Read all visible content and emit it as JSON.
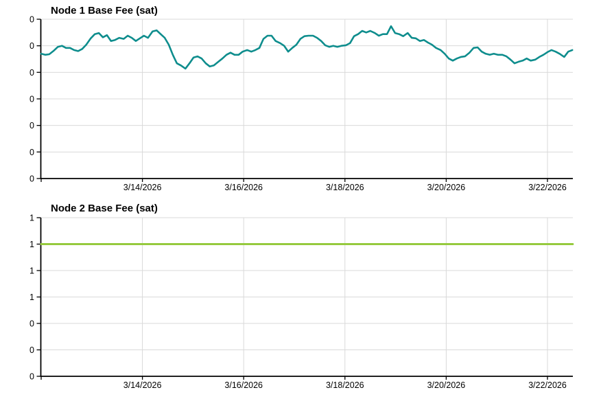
{
  "page": {
    "background_color": "#ffffff",
    "grid_color": "#d9d9d9",
    "axis_color": "#000000",
    "tick_label_color": "#000000"
  },
  "chart_data": [
    {
      "type": "line",
      "title": "Node 1 Base Fee (sat)",
      "x_epoch_note": "x in days since 3/12/2026 at left edge of plot",
      "x_range_days": [
        0,
        10.5
      ],
      "x_tick_days": [
        2,
        4,
        6,
        8,
        10
      ],
      "x_tick_labels": [
        "3/14/2026",
        "3/16/2026",
        "3/18/2026",
        "3/20/2026",
        "3/22/2026"
      ],
      "ylim": [
        0,
        0.3
      ],
      "y_tick_values": [
        0,
        0.05,
        0.1,
        0.15,
        0.2,
        0.25,
        0.3
      ],
      "y_tick_labels": [
        "0",
        "0",
        "0",
        "0",
        "0",
        "0",
        "0"
      ],
      "grid": true,
      "legend": "none",
      "series": [
        {
          "name": "Node 1 base fee",
          "color": "#0e8d8d",
          "stroke_width": 2.6,
          "points": [
            [
              0,
              0.235
            ],
            [
              0.08,
              0.233
            ],
            [
              0.16,
              0.234
            ],
            [
              0.24,
              0.24
            ],
            [
              0.33,
              0.248
            ],
            [
              0.41,
              0.25
            ],
            [
              0.49,
              0.246
            ],
            [
              0.57,
              0.246
            ],
            [
              0.65,
              0.242
            ],
            [
              0.73,
              0.24
            ],
            [
              0.81,
              0.244
            ],
            [
              0.89,
              0.252
            ],
            [
              0.98,
              0.264
            ],
            [
              1.06,
              0.272
            ],
            [
              1.14,
              0.274
            ],
            [
              1.22,
              0.266
            ],
            [
              1.3,
              0.27
            ],
            [
              1.38,
              0.259
            ],
            [
              1.46,
              0.261
            ],
            [
              1.54,
              0.265
            ],
            [
              1.63,
              0.263
            ],
            [
              1.71,
              0.269
            ],
            [
              1.79,
              0.265
            ],
            [
              1.87,
              0.259
            ],
            [
              1.95,
              0.264
            ],
            [
              2.03,
              0.269
            ],
            [
              2.11,
              0.265
            ],
            [
              2.2,
              0.277
            ],
            [
              2.28,
              0.279
            ],
            [
              2.36,
              0.272
            ],
            [
              2.44,
              0.265
            ],
            [
              2.52,
              0.252
            ],
            [
              2.6,
              0.233
            ],
            [
              2.68,
              0.217
            ],
            [
              2.76,
              0.213
            ],
            [
              2.85,
              0.207
            ],
            [
              2.93,
              0.217
            ],
            [
              3.01,
              0.228
            ],
            [
              3.09,
              0.23
            ],
            [
              3.17,
              0.226
            ],
            [
              3.25,
              0.217
            ],
            [
              3.33,
              0.211
            ],
            [
              3.41,
              0.213
            ],
            [
              3.5,
              0.22
            ],
            [
              3.58,
              0.226
            ],
            [
              3.66,
              0.233
            ],
            [
              3.74,
              0.237
            ],
            [
              3.82,
              0.233
            ],
            [
              3.9,
              0.233
            ],
            [
              3.98,
              0.239
            ],
            [
              4.07,
              0.242
            ],
            [
              4.15,
              0.239
            ],
            [
              4.23,
              0.242
            ],
            [
              4.31,
              0.246
            ],
            [
              4.39,
              0.263
            ],
            [
              4.47,
              0.269
            ],
            [
              4.55,
              0.269
            ],
            [
              4.63,
              0.259
            ],
            [
              4.72,
              0.255
            ],
            [
              4.8,
              0.25
            ],
            [
              4.88,
              0.239
            ],
            [
              4.96,
              0.246
            ],
            [
              5.04,
              0.252
            ],
            [
              5.12,
              0.263
            ],
            [
              5.2,
              0.268
            ],
            [
              5.28,
              0.269
            ],
            [
              5.37,
              0.269
            ],
            [
              5.45,
              0.265
            ],
            [
              5.53,
              0.259
            ],
            [
              5.61,
              0.251
            ],
            [
              5.69,
              0.248
            ],
            [
              5.77,
              0.25
            ],
            [
              5.85,
              0.248
            ],
            [
              5.93,
              0.25
            ],
            [
              6.02,
              0.251
            ],
            [
              6.1,
              0.255
            ],
            [
              6.18,
              0.268
            ],
            [
              6.26,
              0.272
            ],
            [
              6.34,
              0.278
            ],
            [
              6.42,
              0.275
            ],
            [
              6.5,
              0.278
            ],
            [
              6.59,
              0.274
            ],
            [
              6.67,
              0.269
            ],
            [
              6.75,
              0.272
            ],
            [
              6.83,
              0.272
            ],
            [
              6.91,
              0.287
            ],
            [
              6.99,
              0.274
            ],
            [
              7.07,
              0.272
            ],
            [
              7.15,
              0.268
            ],
            [
              7.24,
              0.274
            ],
            [
              7.32,
              0.265
            ],
            [
              7.4,
              0.264
            ],
            [
              7.48,
              0.259
            ],
            [
              7.56,
              0.261
            ],
            [
              7.64,
              0.256
            ],
            [
              7.72,
              0.252
            ],
            [
              7.8,
              0.246
            ],
            [
              7.89,
              0.242
            ],
            [
              7.97,
              0.235
            ],
            [
              8.05,
              0.226
            ],
            [
              8.13,
              0.222
            ],
            [
              8.21,
              0.226
            ],
            [
              8.29,
              0.229
            ],
            [
              8.37,
              0.23
            ],
            [
              8.46,
              0.237
            ],
            [
              8.54,
              0.246
            ],
            [
              8.62,
              0.247
            ],
            [
              8.7,
              0.239
            ],
            [
              8.78,
              0.235
            ],
            [
              8.86,
              0.233
            ],
            [
              8.94,
              0.235
            ],
            [
              9.02,
              0.233
            ],
            [
              9.11,
              0.233
            ],
            [
              9.19,
              0.23
            ],
            [
              9.27,
              0.224
            ],
            [
              9.35,
              0.217
            ],
            [
              9.43,
              0.22
            ],
            [
              9.51,
              0.222
            ],
            [
              9.59,
              0.226
            ],
            [
              9.67,
              0.222
            ],
            [
              9.76,
              0.224
            ],
            [
              9.84,
              0.229
            ],
            [
              9.92,
              0.233
            ],
            [
              10.0,
              0.238
            ],
            [
              10.08,
              0.242
            ],
            [
              10.16,
              0.239
            ],
            [
              10.24,
              0.235
            ],
            [
              10.33,
              0.229
            ],
            [
              10.41,
              0.239
            ],
            [
              10.49,
              0.242
            ]
          ]
        }
      ]
    },
    {
      "type": "line",
      "title": "Node 2 Base Fee (sat)",
      "x_epoch_note": "x in days since 3/12/2026 at left edge of plot",
      "x_range_days": [
        0,
        10.5
      ],
      "x_tick_days": [
        2,
        4,
        6,
        8,
        10
      ],
      "x_tick_labels": [
        "3/14/2026",
        "3/16/2026",
        "3/18/2026",
        "3/20/2026",
        "3/22/2026"
      ],
      "ylim": [
        0,
        1.2
      ],
      "y_tick_values": [
        0,
        0.2,
        0.4,
        0.6,
        0.8,
        1.0,
        1.2
      ],
      "y_tick_labels": [
        "0",
        "0",
        "0",
        "1",
        "1",
        "1",
        "1"
      ],
      "grid": true,
      "legend": "none",
      "series": [
        {
          "name": "Node 2 base fee",
          "color": "#96ca3e",
          "stroke_width": 3,
          "points": [
            [
              0,
              1.0
            ],
            [
              10.5,
              1.0
            ]
          ]
        }
      ]
    }
  ]
}
